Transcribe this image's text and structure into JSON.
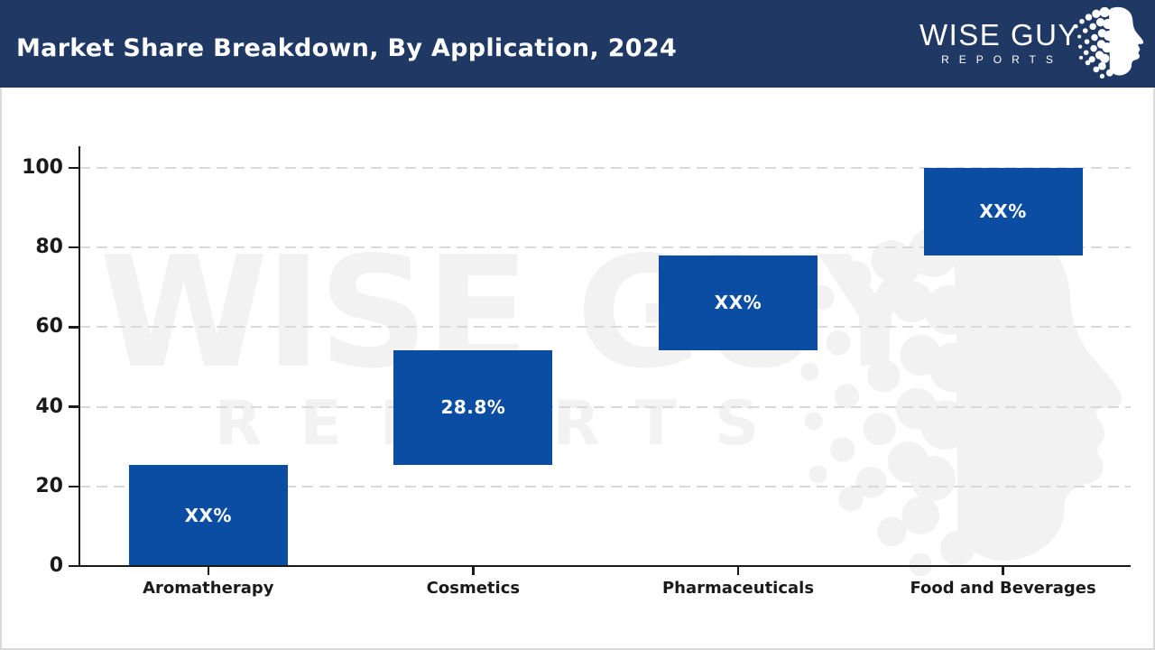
{
  "header": {
    "title": "Market Share Breakdown, By Application, 2024",
    "logo": {
      "wordmark": "WISE GUY",
      "subtext": "REPORTS"
    }
  },
  "watermark": {
    "wordmark": "WISE GUY",
    "subtext": "REPORTS"
  },
  "chart_data": {
    "type": "bar",
    "subtype": "waterfall",
    "title": "Market Share Breakdown, By Application, 2024",
    "categories": [
      "Aromatherapy",
      "Cosmetics",
      "Pharmaceuticals",
      "Food and Beverages"
    ],
    "segments": [
      {
        "category": "Aromatherapy",
        "start": 0,
        "end": 25.4,
        "label": "XX%"
      },
      {
        "category": "Cosmetics",
        "start": 25.4,
        "end": 54.2,
        "label": "28.8%"
      },
      {
        "category": "Pharmaceuticals",
        "start": 54.2,
        "end": 78.1,
        "label": "XX%"
      },
      {
        "category": "Food and Beverages",
        "start": 78.1,
        "end": 100.0,
        "label": "XX%"
      }
    ],
    "xlabel": "",
    "ylabel": "",
    "yticks": [
      0,
      20,
      40,
      60,
      80,
      100
    ],
    "ylim": [
      0,
      105
    ],
    "grid": "horizontal-dashed",
    "legend": "none",
    "colors": {
      "bar": "#0b4da2",
      "header_background": "#1f3864",
      "grid_line": "#d9d9d9",
      "axis": "#1a1a1a",
      "bar_label_text": "#ffffff",
      "watermark": "#f2f2f2"
    }
  }
}
